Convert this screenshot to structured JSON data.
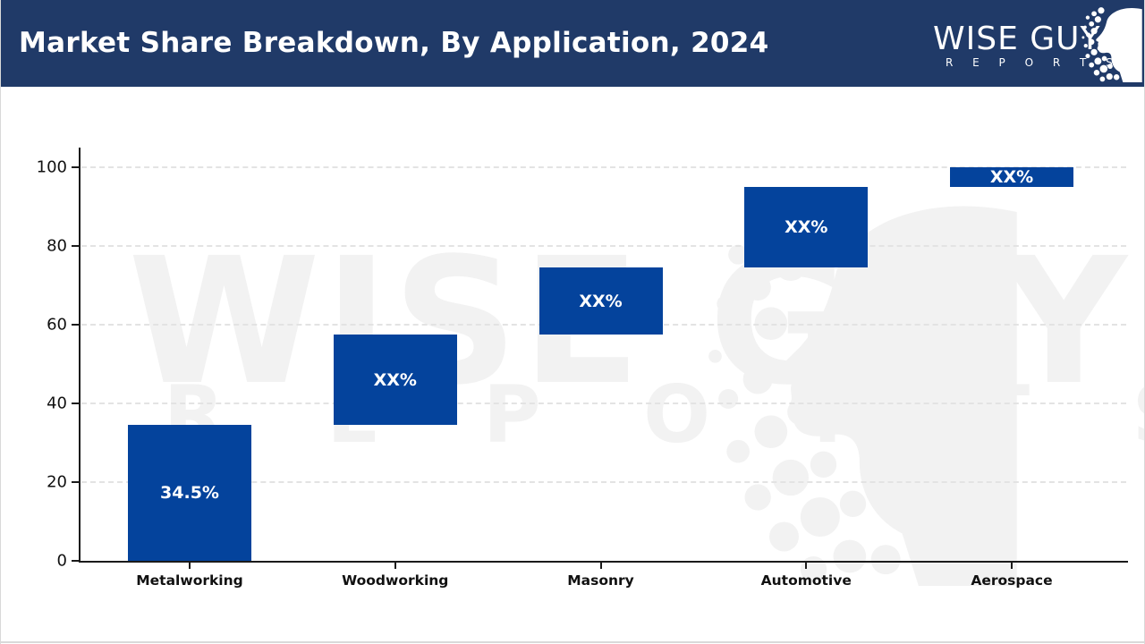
{
  "header": {
    "title": "Market Share Breakdown, By Application, 2024",
    "logo": {
      "wordmark": "WISE GUY",
      "subtitle": "R E P O R T S"
    }
  },
  "watermark": {
    "wordmark": "WISE GUY",
    "subtitle": "R E P O R T S"
  },
  "chart_data": {
    "type": "bar",
    "variant": "waterfall",
    "title": "Market Share Breakdown, By Application, 2024",
    "categories": [
      "Metalworking",
      "Woodworking",
      "Masonry",
      "Automotive",
      "Aerospace"
    ],
    "segments": [
      {
        "category": "Metalworking",
        "start": 0,
        "end": 34.5,
        "label": "34.5%"
      },
      {
        "category": "Woodworking",
        "start": 34.5,
        "end": 57.5,
        "label": "XX%"
      },
      {
        "category": "Masonry",
        "start": 57.5,
        "end": 74.5,
        "label": "XX%"
      },
      {
        "category": "Automotive",
        "start": 74.5,
        "end": 95,
        "label": "XX%"
      },
      {
        "category": "Aerospace",
        "start": 95,
        "end": 100,
        "label": "XX%"
      }
    ],
    "yticks": [
      0,
      20,
      40,
      60,
      80,
      100
    ],
    "ylim": [
      0,
      105
    ],
    "xlabel": "",
    "ylabel": "",
    "legend": "none",
    "grid": "horizontal-dashed",
    "colors": {
      "bar": "#04439c",
      "header_bg": "#203a68",
      "grid_line": "#e3e3e3",
      "axis": "#1a1a1a",
      "bar_label": "#ffffff",
      "watermark": "#f2f2f2"
    }
  }
}
